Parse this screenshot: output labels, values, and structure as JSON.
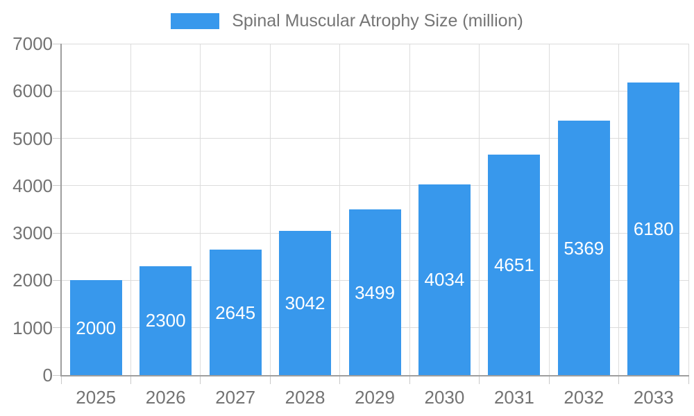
{
  "chart_data": {
    "type": "bar",
    "title": "Spinal Muscular Atrophy Size (million)",
    "categories": [
      "2025",
      "2026",
      "2027",
      "2028",
      "2029",
      "2030",
      "2031",
      "2032",
      "2033"
    ],
    "values": [
      2000,
      2300,
      2645,
      3042,
      3499,
      4034,
      4651,
      5369,
      6180
    ],
    "xlabel": "",
    "ylabel": "",
    "ylim": [
      0,
      7000
    ],
    "ytick_interval": 1000,
    "ytick_labels": [
      "0",
      "1000",
      "2000",
      "3000",
      "4000",
      "5000",
      "6000",
      "7000"
    ],
    "grid": true,
    "bar_value_labels_visible": true,
    "legend_position": "top"
  },
  "legend": {
    "label": "Spinal Muscular Atrophy Size (million)"
  },
  "colors": {
    "bar": "#3898ec",
    "axis_text": "#737373",
    "legend_text": "#757575",
    "value_text": "#ffffff",
    "gridline": "#dcdcdc",
    "tick": "#c9c9c9",
    "axis_line": "#9e9e9e",
    "background": "#ffffff"
  }
}
